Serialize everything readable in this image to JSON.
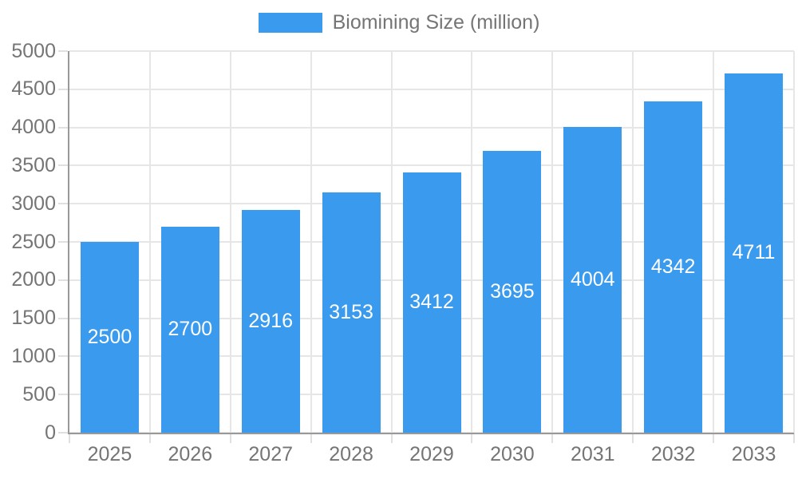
{
  "chart_data": {
    "type": "bar",
    "title": "",
    "legend": "Biomining Size (million)",
    "legend_position": "top-center",
    "categories": [
      "2025",
      "2026",
      "2027",
      "2028",
      "2029",
      "2030",
      "2031",
      "2032",
      "2033"
    ],
    "series": [
      {
        "name": "Biomining Size (million)",
        "values": [
          2500,
          2700,
          2916,
          3153,
          3412,
          3695,
          4004,
          4342,
          4711
        ]
      }
    ],
    "value_labels": [
      "2500",
      "2700",
      "2916",
      "3153",
      "3412",
      "3695",
      "4004",
      "4342",
      "4711"
    ],
    "xlabel": "",
    "ylabel": "",
    "ylim": [
      0,
      5000
    ],
    "yticks": [
      0,
      500,
      1000,
      1500,
      2000,
      2500,
      3000,
      3500,
      4000,
      4500,
      5000
    ],
    "grid": "both",
    "colors": {
      "bar": "#399AEE",
      "value_label": "#ffffff",
      "grid": "#e6e6e6",
      "tick": "#e0e0e0",
      "axis": "#999999",
      "text": "#757575",
      "background": "#ffffff"
    }
  }
}
